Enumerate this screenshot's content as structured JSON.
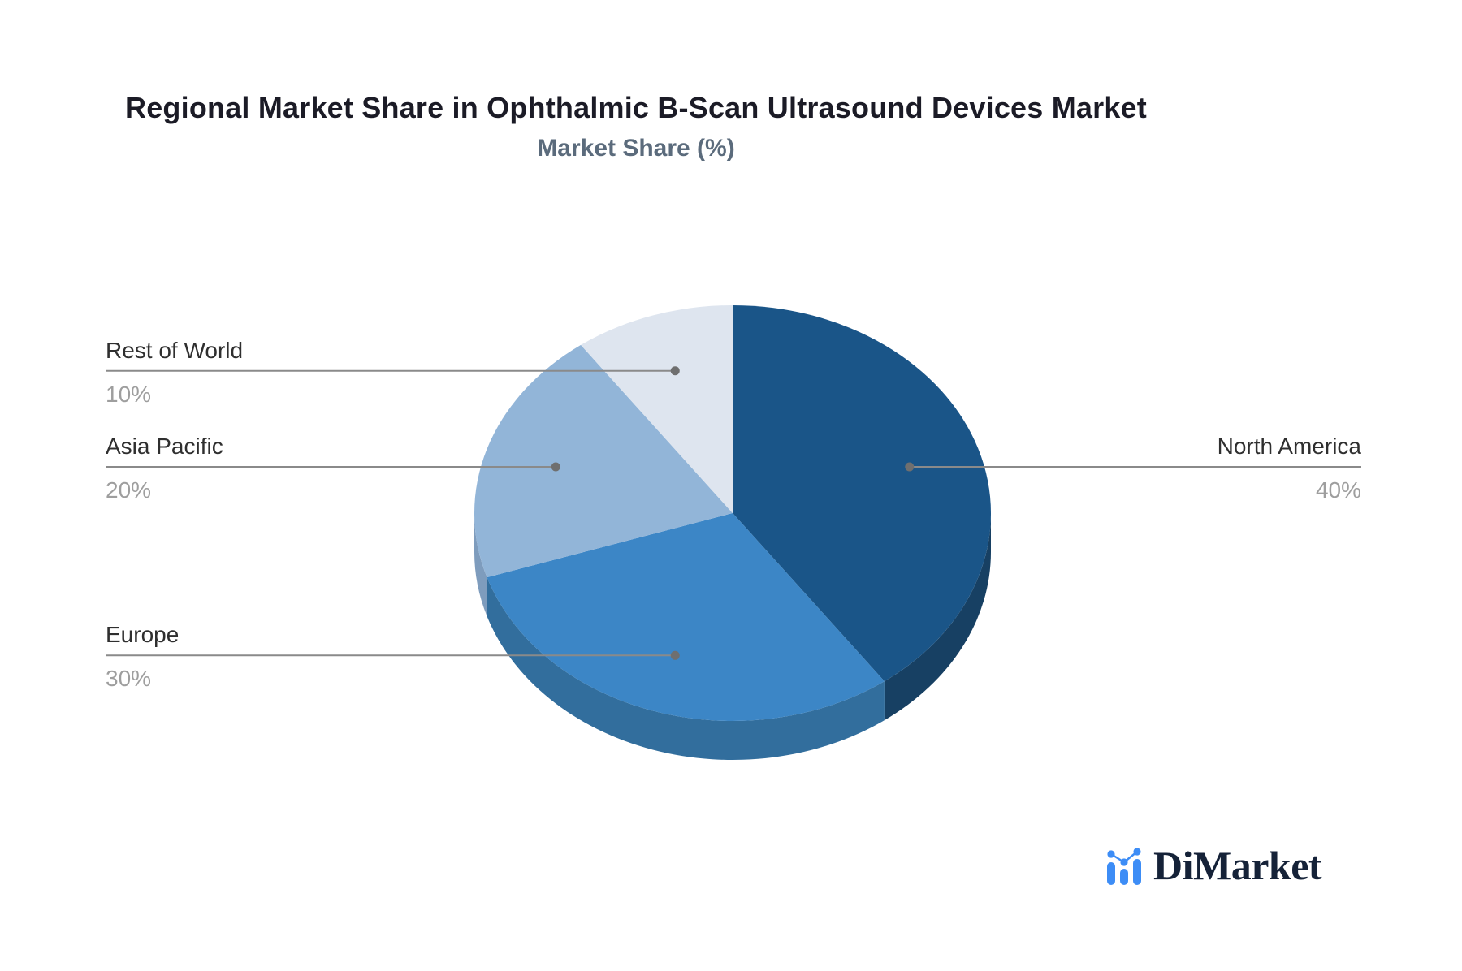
{
  "chart_data": {
    "type": "pie",
    "title": "Regional Market Share in Ophthalmic B-Scan Ultrasound Devices Market",
    "subtitle": "Market Share (%)",
    "labels": [
      "North America",
      "Europe",
      "Asia Pacific",
      "Rest of World"
    ],
    "values": [
      40,
      30,
      20,
      10
    ],
    "percent_display": [
      "40%",
      "30%",
      "20%",
      "10%"
    ],
    "colors": [
      "#1a5588",
      "#3c86c6",
      "#92b5d8",
      "#dee5ef"
    ],
    "side_colors": [
      "#174063",
      "#326e9d",
      "#7e9cbd",
      "#b9c4d6"
    ],
    "effect": "3d-extruded",
    "direction": "clockwise",
    "start_angle": "12-o-clock",
    "legend_position": "none",
    "style": {
      "label_color": "#2f2f2f",
      "percent_color": "#9e9e9e",
      "label_line_color": "#8a8a8a",
      "label_dot_color": "#6f6f6f",
      "background": "#ffffff",
      "title_color": "#1b1b26",
      "subtitle_color": "#5b6b7c"
    }
  },
  "branding": {
    "logo_text": "DiMarket",
    "logo_icon": "bar-line-chart-icon",
    "logo_icon_color": "#3d8df6",
    "logo_text_color": "#152238"
  }
}
